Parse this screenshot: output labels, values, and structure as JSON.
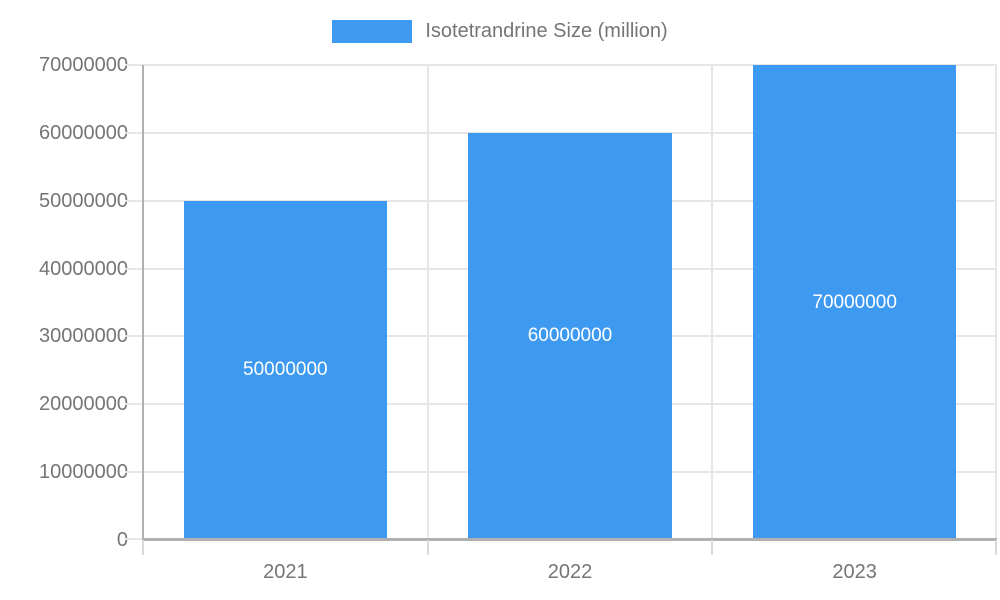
{
  "chart_data": {
    "type": "bar",
    "title": "",
    "legend": {
      "position": "top",
      "label": "Isotetrandrine Size (million)"
    },
    "categories": [
      "2021",
      "2022",
      "2023"
    ],
    "series": [
      {
        "name": "Isotetrandrine Size (million)",
        "values": [
          50000000,
          60000000,
          70000000
        ]
      }
    ],
    "bar_labels": [
      "50000000",
      "60000000",
      "70000000"
    ],
    "y_ticks": [
      "0",
      "10000000",
      "20000000",
      "30000000",
      "40000000",
      "50000000",
      "60000000",
      "70000000"
    ],
    "ylim": [
      0,
      70000000
    ],
    "grid": true,
    "colors": {
      "bar": "#3D9AF0",
      "bar_label": "#FFFFFF",
      "axis_text": "#757575",
      "grid_line": "#E6E6E6",
      "axis_line": "#B0B0B0",
      "background": "#FFFFFF"
    }
  }
}
